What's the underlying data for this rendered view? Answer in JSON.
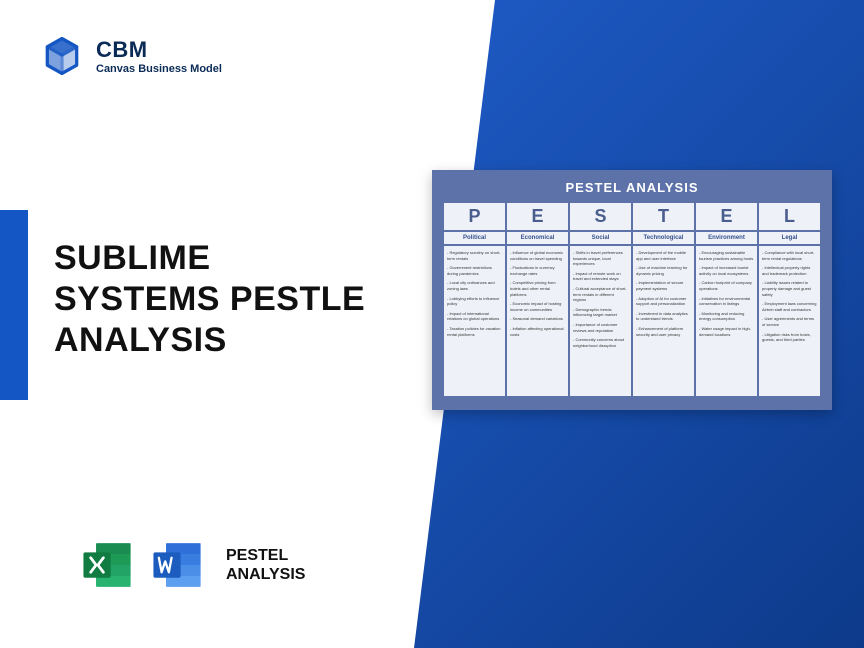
{
  "logo": {
    "title": "CBM",
    "subtitle": "Canvas Business Model",
    "icon_color": "#1456c4"
  },
  "main_title_lines": [
    "SUBLIME",
    "SYSTEMS PESTLE",
    "ANALYSIS"
  ],
  "bottom_label_lines": [
    "PESTEL",
    "ANALYSIS"
  ],
  "excel_icon_color": "#1d9b56",
  "word_icon_color": "#2e6fd9",
  "accent_color": "#1456c4",
  "bg_gradient": [
    "#1e5bc6",
    "#0d3a8a"
  ],
  "pestel": {
    "title": "PESTEL ANALYSIS",
    "header_bg": "#5d72a8",
    "cell_bg": "#eef1f7",
    "letter_color": "#4a5d8f",
    "name_color": "#36508c",
    "columns": [
      {
        "letter": "P",
        "name": "Political",
        "items": [
          "Regulatory scrutiny on short-term rentals",
          "Government restrictions during pandemics",
          "Local city ordinances and zoning laws",
          "Lobbying efforts to influence policy",
          "Impact of international relations on global operations",
          "Taxation policies for vacation rental platforms"
        ]
      },
      {
        "letter": "E",
        "name": "Economical",
        "items": [
          "Influence of global economic conditions on travel spending",
          "Fluctuations in currency exchange rates",
          "Competitive pricing from hotels and other rental platforms",
          "Economic impact of hosting income on communities",
          "Seasonal demand variations",
          "Inflation affecting operational costs"
        ]
      },
      {
        "letter": "S",
        "name": "Social",
        "items": [
          "Shifts in travel preferences towards unique, local experiences",
          "Impact of remote work on travel and extended stays",
          "Cultural acceptance of short-term rentals in different regions",
          "Demographic trends influencing target market",
          "Importance of customer reviews and reputation",
          "Community concerns about neighborhood disruption"
        ]
      },
      {
        "letter": "T",
        "name": "Technological",
        "items": [
          "Development of the mobile app and user interface",
          "Use of machine learning for dynamic pricing",
          "Implementation of secure payment systems",
          "Adoption of AI for customer support and personalization",
          "Investment in data analytics to understand trends",
          "Enhancement of platform security and user privacy"
        ]
      },
      {
        "letter": "E",
        "name": "Environment",
        "items": [
          "Encouraging sustainable tourism practices among hosts",
          "Impact of increased tourist activity on local ecosystems",
          "Carbon footprint of company operations",
          "Initiatives for environmental conservation in listings",
          "Monitoring and reducing energy consumption",
          "Water usage impact in high-demand locations"
        ]
      },
      {
        "letter": "L",
        "name": "Legal",
        "items": [
          "Compliance with local short-term rental regulations",
          "Intellectual property rights and trademark protection",
          "Liability issues related to property damage and guest safety",
          "Employment laws concerning Airbnb staff and contractors",
          "User agreements and terms of service",
          "Litigation risks from hosts, guests, and third parties"
        ]
      }
    ]
  }
}
